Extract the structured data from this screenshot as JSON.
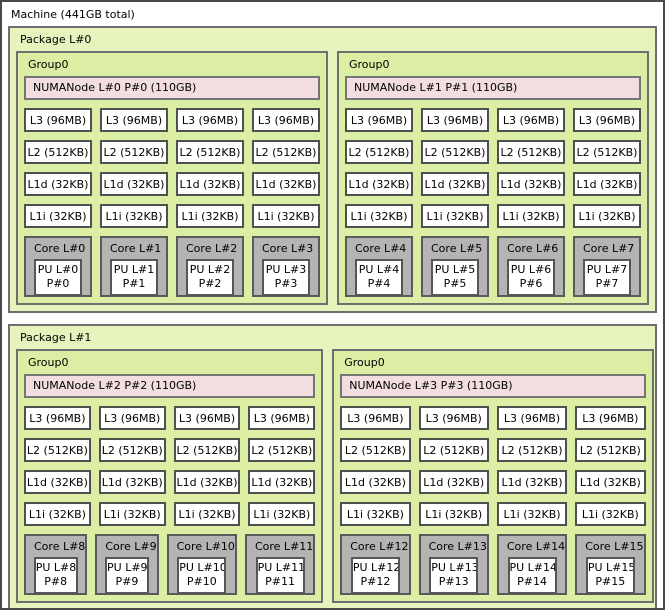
{
  "machine": {
    "label": "Machine (441GB total)"
  },
  "cache_rows": [
    "L3 (96MB)",
    "L2 (512KB)",
    "L1d (32KB)",
    "L1i (32KB)"
  ],
  "packages": [
    {
      "label": "Package L#0",
      "groups": [
        {
          "label": "Group0",
          "numa": "NUMANode L#0 P#0 (110GB)",
          "cores": [
            {
              "core": "Core L#0",
              "pu_l": "PU L#0",
              "pu_p": "P#0"
            },
            {
              "core": "Core L#1",
              "pu_l": "PU L#1",
              "pu_p": "P#1"
            },
            {
              "core": "Core L#2",
              "pu_l": "PU L#2",
              "pu_p": "P#2"
            },
            {
              "core": "Core L#3",
              "pu_l": "PU L#3",
              "pu_p": "P#3"
            }
          ]
        },
        {
          "label": "Group0",
          "numa": "NUMANode L#1 P#1 (110GB)",
          "cores": [
            {
              "core": "Core L#4",
              "pu_l": "PU L#4",
              "pu_p": "P#4"
            },
            {
              "core": "Core L#5",
              "pu_l": "PU L#5",
              "pu_p": "P#5"
            },
            {
              "core": "Core L#6",
              "pu_l": "PU L#6",
              "pu_p": "P#6"
            },
            {
              "core": "Core L#7",
              "pu_l": "PU L#7",
              "pu_p": "P#7"
            }
          ]
        }
      ]
    },
    {
      "label": "Package L#1",
      "groups": [
        {
          "label": "Group0",
          "numa": "NUMANode L#2 P#2 (110GB)",
          "cores": [
            {
              "core": "Core L#8",
              "pu_l": "PU L#8",
              "pu_p": "P#8"
            },
            {
              "core": "Core L#9",
              "pu_l": "PU L#9",
              "pu_p": "P#9"
            },
            {
              "core": "Core L#10",
              "pu_l": "PU L#10",
              "pu_p": "P#10"
            },
            {
              "core": "Core L#11",
              "pu_l": "PU L#11",
              "pu_p": "P#11"
            }
          ]
        },
        {
          "label": "Group0",
          "numa": "NUMANode L#3 P#3 (110GB)",
          "cores": [
            {
              "core": "Core L#12",
              "pu_l": "PU L#12",
              "pu_p": "P#12"
            },
            {
              "core": "Core L#13",
              "pu_l": "PU L#13",
              "pu_p": "P#13"
            },
            {
              "core": "Core L#14",
              "pu_l": "PU L#14",
              "pu_p": "P#14"
            },
            {
              "core": "Core L#15",
              "pu_l": "PU L#15",
              "pu_p": "P#15"
            }
          ]
        }
      ]
    }
  ],
  "colors": {
    "machine_fill": "#ffffff",
    "package_fill": "#e6f3bd",
    "group_fill": "#dceea4",
    "numanode_fill": "#f2dede",
    "cache_fill": "#ffffff",
    "core_fill": "#b4b4b4",
    "pu_fill": "#ffffff",
    "border_dark": "#4f4f4f"
  }
}
